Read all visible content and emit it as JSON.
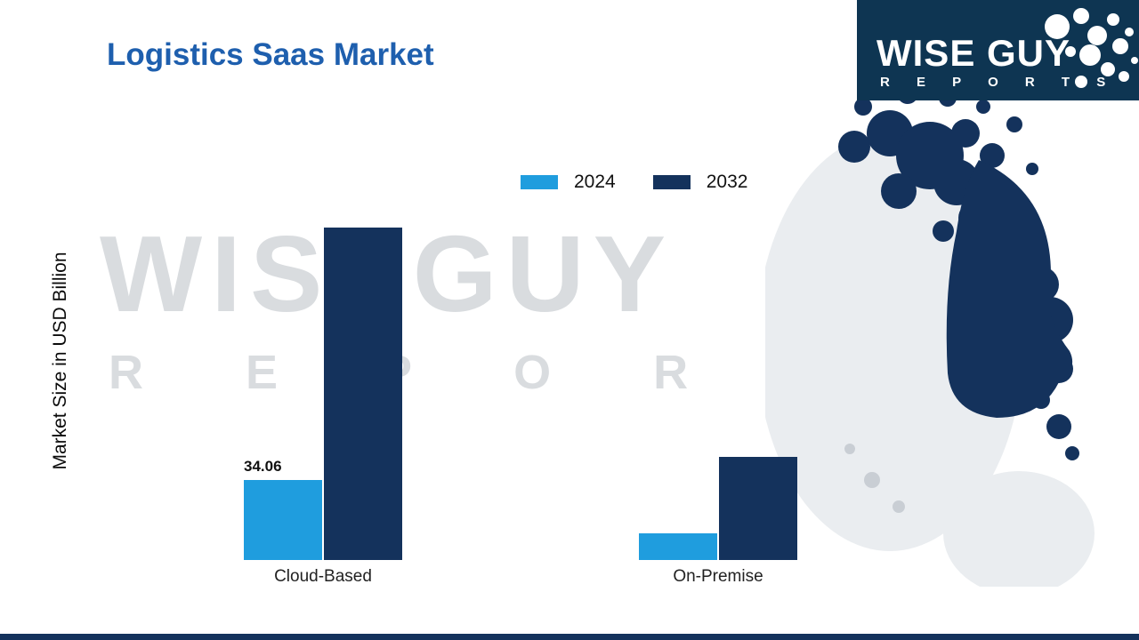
{
  "title": "Logistics Saas Market",
  "brand": {
    "line1": "WISE GUY",
    "line2": "R E P O R T S"
  },
  "watermark": {
    "line1": "WISEGUY",
    "line2": "R E P O R T S"
  },
  "colors": {
    "title_blue": "#1e5fae",
    "series_2024_blue": "#1f9dde",
    "series_2032_navy": "#14325c",
    "brand_corner_bg": "#0e3552",
    "watermark_gray": "#d9dcdf"
  },
  "chart_data": {
    "type": "bar",
    "title": "Logistics Saas Market",
    "xlabel": "",
    "ylabel": "Market Size in USD Billion",
    "categories": [
      "Cloud-Based",
      "On-Premise"
    ],
    "series": [
      {
        "name": "2024",
        "color": "#1f9dde",
        "values": [
          34.06,
          11.4
        ]
      },
      {
        "name": "2032",
        "color": "#14325c",
        "values": [
          141.5,
          43.9
        ]
      }
    ],
    "ylim": [
      0,
      150
    ],
    "grid": false,
    "legend_position": "top",
    "data_labels": [
      "34.06"
    ],
    "data_label_note": "only the Cloud-Based 2024 bar is labeled; other values estimated from bar heights"
  }
}
